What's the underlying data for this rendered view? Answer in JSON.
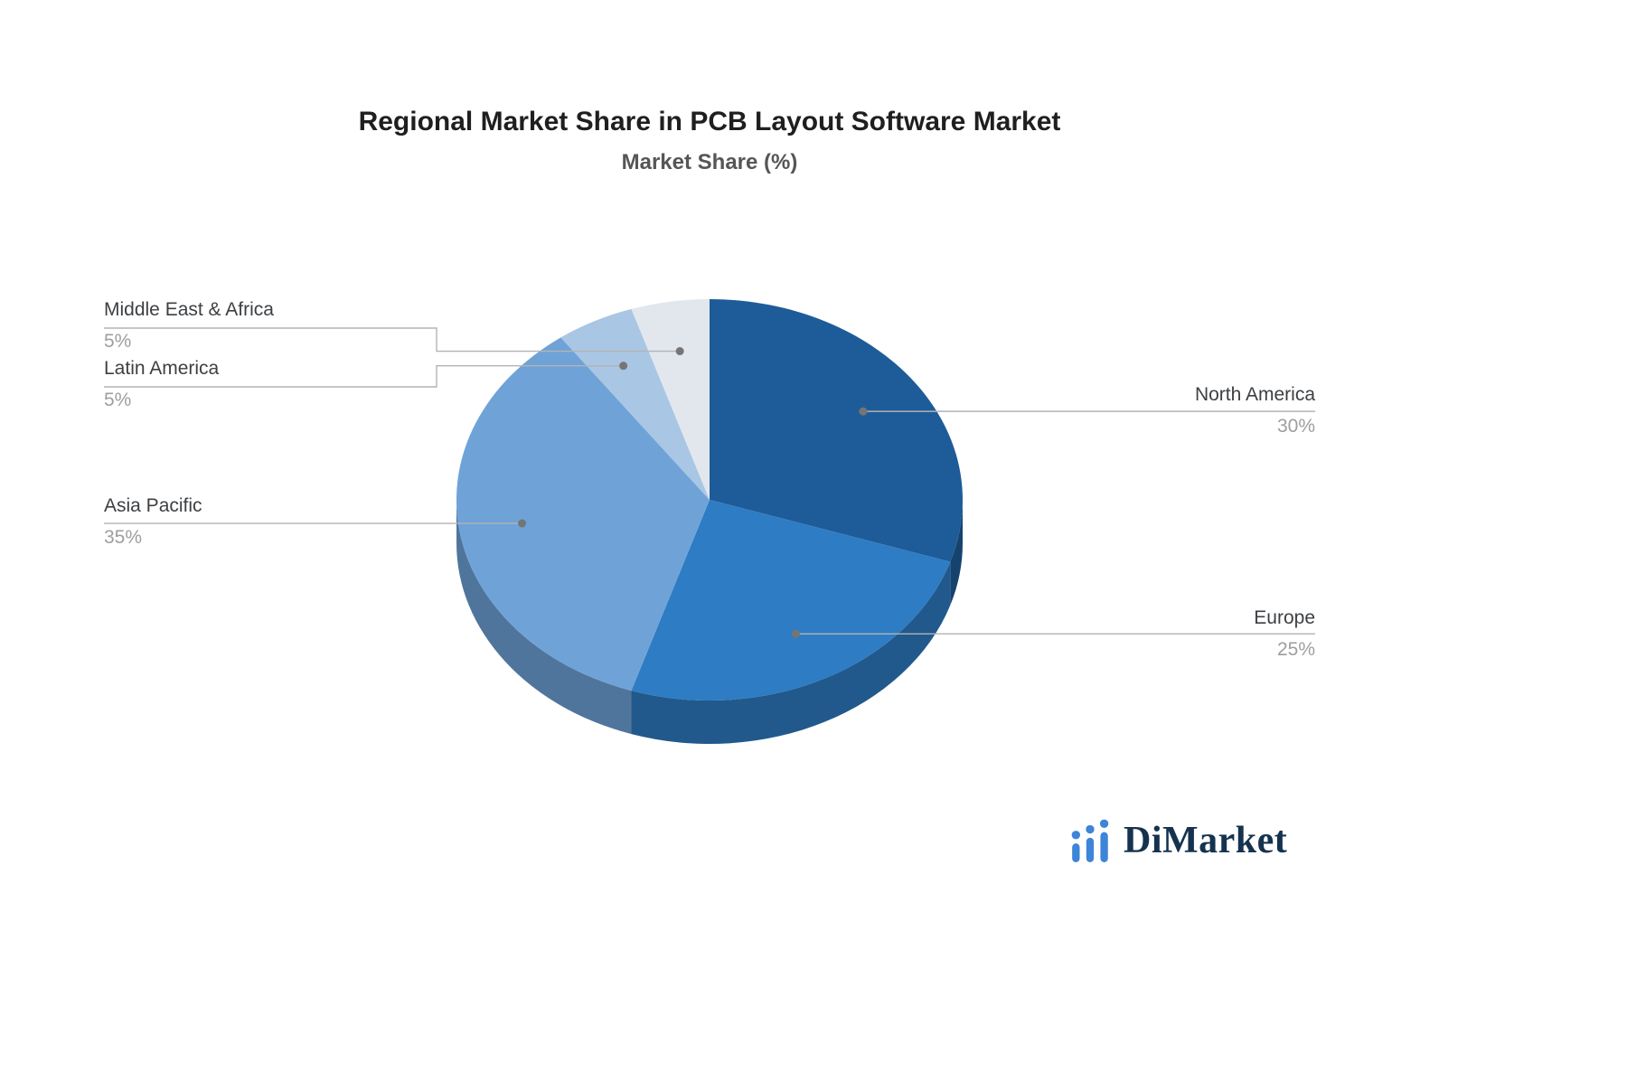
{
  "page": {
    "background": "#ffffff"
  },
  "chart_data": {
    "type": "pie",
    "title": "Regional Market Share in PCB Layout Software Market",
    "subtitle": "Market Share (%)",
    "unit": "%",
    "labels": [
      "North America",
      "Europe",
      "Asia Pacific",
      "Latin America",
      "Middle East & Africa"
    ],
    "values": [
      30,
      25,
      35,
      5,
      5
    ],
    "value_labels": [
      "30%",
      "25%",
      "35%",
      "5%",
      "5%"
    ],
    "colors": [
      "#1e5c99",
      "#2e7cc3",
      "#6fa3d8",
      "#a9c6e4",
      "#e2e7ee"
    ],
    "wall_shade_factor": 0.72,
    "start_angle_deg": -90,
    "direction": "clockwise",
    "style_3d": true,
    "legend_position": "callout-labels",
    "label_color": "#3d4043",
    "value_color": "#9e9e9e",
    "line_color": "#b3b3b3",
    "dot_color": "#757575"
  },
  "branding": {
    "logo_text": "DiMarket",
    "logo_icon": "bar-chart-icon",
    "logo_text_color": "#15334f",
    "logo_accent_color": "#3d85d8"
  }
}
